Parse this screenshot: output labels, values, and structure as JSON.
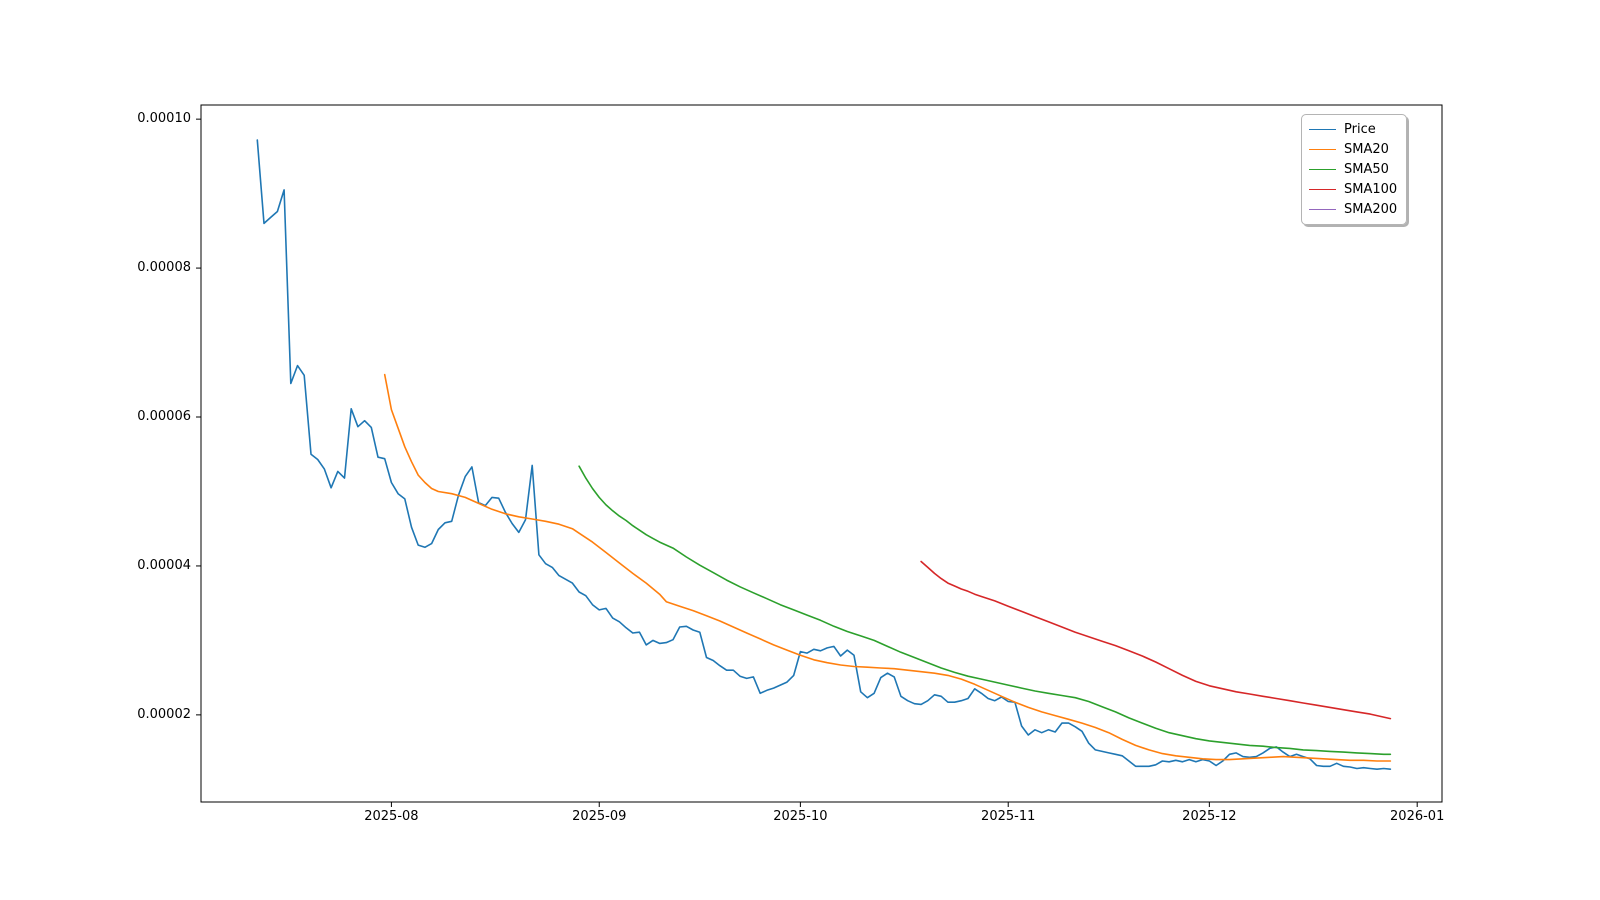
{
  "figure": {
    "background": "#ffffff",
    "plot_background": "#ffffff",
    "spine_color": "#000000"
  },
  "chart_data": {
    "type": "line",
    "title": "",
    "xlabel": "",
    "ylabel": "",
    "grid": false,
    "legend": {
      "location": "upper right",
      "shadow": true
    },
    "value_scale": 1e-05,
    "day_zero_date": "2025-07-12",
    "x_axis": {
      "tick_labels": [
        "2025-08",
        "2025-09",
        "2025-10",
        "2025-11",
        "2025-12",
        "2026-01"
      ],
      "tick_days": [
        20,
        51,
        81,
        112,
        142,
        173
      ],
      "xlim_days": [
        -8.4,
        176.7
      ]
    },
    "y_axis": {
      "tick_labels": [
        "0.00002",
        "0.00004",
        "0.00006",
        "0.00008",
        "0.00010"
      ],
      "tick_values": [
        2e-05,
        4e-05,
        6e-05,
        8e-05,
        0.0001
      ],
      "ylim": [
        8.3e-06,
        0.0001019
      ]
    },
    "series": [
      {
        "name": "Price",
        "color": "#1f77b4",
        "start_day": 0,
        "step_days": 1,
        "values": [
          9.72,
          8.6,
          8.68,
          8.76,
          9.05,
          6.45,
          6.69,
          6.56,
          5.5,
          5.43,
          5.3,
          5.05,
          5.27,
          5.18,
          6.11,
          5.87,
          5.95,
          5.86,
          5.46,
          5.44,
          5.12,
          4.97,
          4.9,
          4.52,
          4.28,
          4.25,
          4.3,
          4.49,
          4.58,
          4.6,
          4.95,
          5.2,
          5.33,
          4.85,
          4.81,
          4.92,
          4.91,
          4.72,
          4.57,
          4.45,
          4.62,
          5.35,
          4.15,
          4.03,
          3.98,
          3.87,
          3.82,
          3.77,
          3.65,
          3.6,
          3.48,
          3.41,
          3.43,
          3.3,
          3.25,
          3.17,
          3.1,
          3.11,
          2.94,
          3.0,
          2.96,
          2.97,
          3.01,
          3.18,
          3.19,
          3.14,
          3.11,
          2.77,
          2.73,
          2.66,
          2.6,
          2.6,
          2.52,
          2.49,
          2.51,
          2.29,
          2.33,
          2.36,
          2.4,
          2.44,
          2.53,
          2.85,
          2.83,
          2.88,
          2.86,
          2.9,
          2.92,
          2.79,
          2.87,
          2.8,
          2.31,
          2.23,
          2.29,
          2.5,
          2.56,
          2.51,
          2.25,
          2.19,
          2.15,
          2.14,
          2.19,
          2.27,
          2.25,
          2.17,
          2.17,
          2.19,
          2.22,
          2.35,
          2.29,
          2.22,
          2.19,
          2.24,
          2.18,
          2.17,
          1.85,
          1.73,
          1.8,
          1.76,
          1.8,
          1.77,
          1.89,
          1.89,
          1.84,
          1.78,
          1.62,
          1.53,
          1.51,
          1.49,
          1.47,
          1.45,
          1.38,
          1.31,
          1.31,
          1.31,
          1.33,
          1.38,
          1.37,
          1.39,
          1.37,
          1.4,
          1.37,
          1.4,
          1.38,
          1.32,
          1.38,
          1.47,
          1.49,
          1.44,
          1.43,
          1.44,
          1.49,
          1.55,
          1.57,
          1.5,
          1.44,
          1.47,
          1.44,
          1.41,
          1.32,
          1.31,
          1.31,
          1.35,
          1.31,
          1.3,
          1.28,
          1.29,
          1.28,
          1.27,
          1.28,
          1.27
        ]
      },
      {
        "name": "SMA20",
        "color": "#ff7f0e",
        "points": [
          [
            19,
            6.57
          ],
          [
            20,
            6.1
          ],
          [
            21,
            5.85
          ],
          [
            22,
            5.6
          ],
          [
            23,
            5.4
          ],
          [
            24,
            5.22
          ],
          [
            25,
            5.12
          ],
          [
            26,
            5.04
          ],
          [
            27,
            5.0
          ],
          [
            29,
            4.97
          ],
          [
            31,
            4.92
          ],
          [
            33,
            4.84
          ],
          [
            35,
            4.76
          ],
          [
            37,
            4.7
          ],
          [
            39,
            4.66
          ],
          [
            41,
            4.63
          ],
          [
            43,
            4.6
          ],
          [
            45,
            4.56
          ],
          [
            47,
            4.5
          ],
          [
            48,
            4.44
          ],
          [
            50,
            4.32
          ],
          [
            52,
            4.18
          ],
          [
            54,
            4.04
          ],
          [
            56,
            3.9
          ],
          [
            58,
            3.77
          ],
          [
            60,
            3.62
          ],
          [
            61,
            3.52
          ],
          [
            63,
            3.46
          ],
          [
            65,
            3.4
          ],
          [
            67,
            3.33
          ],
          [
            69,
            3.26
          ],
          [
            71,
            3.18
          ],
          [
            73,
            3.1
          ],
          [
            75,
            3.02
          ],
          [
            77,
            2.94
          ],
          [
            79,
            2.87
          ],
          [
            81,
            2.8
          ],
          [
            83,
            2.74
          ],
          [
            85,
            2.7
          ],
          [
            87,
            2.67
          ],
          [
            89,
            2.65
          ],
          [
            91,
            2.64
          ],
          [
            93,
            2.63
          ],
          [
            95,
            2.62
          ],
          [
            97,
            2.6
          ],
          [
            99,
            2.58
          ],
          [
            101,
            2.56
          ],
          [
            103,
            2.53
          ],
          [
            105,
            2.48
          ],
          [
            107,
            2.41
          ],
          [
            109,
            2.33
          ],
          [
            111,
            2.25
          ],
          [
            113,
            2.17
          ],
          [
            115,
            2.1
          ],
          [
            117,
            2.04
          ],
          [
            119,
            1.99
          ],
          [
            121,
            1.94
          ],
          [
            123,
            1.89
          ],
          [
            125,
            1.83
          ],
          [
            127,
            1.76
          ],
          [
            129,
            1.67
          ],
          [
            131,
            1.59
          ],
          [
            133,
            1.53
          ],
          [
            135,
            1.48
          ],
          [
            137,
            1.45
          ],
          [
            139,
            1.43
          ],
          [
            141,
            1.41
          ],
          [
            143,
            1.4
          ],
          [
            145,
            1.4
          ],
          [
            147,
            1.41
          ],
          [
            149,
            1.42
          ],
          [
            151,
            1.43
          ],
          [
            153,
            1.44
          ],
          [
            155,
            1.43
          ],
          [
            157,
            1.42
          ],
          [
            159,
            1.41
          ],
          [
            161,
            1.4
          ],
          [
            163,
            1.39
          ],
          [
            165,
            1.39
          ],
          [
            167,
            1.38
          ],
          [
            169,
            1.38
          ]
        ]
      },
      {
        "name": "SMA50",
        "color": "#2ca02c",
        "points": [
          [
            48,
            5.34
          ],
          [
            49,
            5.18
          ],
          [
            50,
            5.04
          ],
          [
            51,
            4.92
          ],
          [
            52,
            4.82
          ],
          [
            53,
            4.74
          ],
          [
            54,
            4.67
          ],
          [
            55,
            4.61
          ],
          [
            56,
            4.54
          ],
          [
            57,
            4.48
          ],
          [
            58,
            4.42
          ],
          [
            59,
            4.37
          ],
          [
            60,
            4.32
          ],
          [
            62,
            4.24
          ],
          [
            64,
            4.12
          ],
          [
            66,
            4.01
          ],
          [
            68,
            3.91
          ],
          [
            70,
            3.81
          ],
          [
            72,
            3.72
          ],
          [
            74,
            3.64
          ],
          [
            76,
            3.56
          ],
          [
            78,
            3.48
          ],
          [
            80,
            3.41
          ],
          [
            82,
            3.34
          ],
          [
            84,
            3.27
          ],
          [
            86,
            3.19
          ],
          [
            88,
            3.12
          ],
          [
            90,
            3.06
          ],
          [
            92,
            3.0
          ],
          [
            94,
            2.92
          ],
          [
            96,
            2.84
          ],
          [
            98,
            2.77
          ],
          [
            100,
            2.7
          ],
          [
            102,
            2.63
          ],
          [
            104,
            2.57
          ],
          [
            106,
            2.52
          ],
          [
            108,
            2.48
          ],
          [
            110,
            2.44
          ],
          [
            112,
            2.4
          ],
          [
            114,
            2.36
          ],
          [
            116,
            2.32
          ],
          [
            118,
            2.29
          ],
          [
            120,
            2.26
          ],
          [
            122,
            2.23
          ],
          [
            124,
            2.18
          ],
          [
            126,
            2.11
          ],
          [
            128,
            2.04
          ],
          [
            130,
            1.96
          ],
          [
            132,
            1.89
          ],
          [
            134,
            1.82
          ],
          [
            136,
            1.76
          ],
          [
            138,
            1.72
          ],
          [
            140,
            1.68
          ],
          [
            142,
            1.65
          ],
          [
            144,
            1.63
          ],
          [
            146,
            1.61
          ],
          [
            148,
            1.59
          ],
          [
            150,
            1.58
          ],
          [
            152,
            1.56
          ],
          [
            154,
            1.55
          ],
          [
            156,
            1.53
          ],
          [
            158,
            1.52
          ],
          [
            160,
            1.51
          ],
          [
            162,
            1.5
          ],
          [
            164,
            1.49
          ],
          [
            166,
            1.48
          ],
          [
            168,
            1.47
          ],
          [
            169,
            1.47
          ]
        ]
      },
      {
        "name": "SMA100",
        "color": "#d62728",
        "points": [
          [
            99,
            4.06
          ],
          [
            100,
            3.98
          ],
          [
            101,
            3.9
          ],
          [
            102,
            3.83
          ],
          [
            103,
            3.77
          ],
          [
            104,
            3.73
          ],
          [
            105,
            3.69
          ],
          [
            106,
            3.66
          ],
          [
            107,
            3.62
          ],
          [
            108,
            3.59
          ],
          [
            110,
            3.53
          ],
          [
            112,
            3.46
          ],
          [
            114,
            3.39
          ],
          [
            116,
            3.32
          ],
          [
            118,
            3.25
          ],
          [
            120,
            3.18
          ],
          [
            122,
            3.11
          ],
          [
            124,
            3.05
          ],
          [
            126,
            2.99
          ],
          [
            128,
            2.93
          ],
          [
            130,
            2.86
          ],
          [
            132,
            2.79
          ],
          [
            134,
            2.71
          ],
          [
            136,
            2.62
          ],
          [
            138,
            2.53
          ],
          [
            140,
            2.45
          ],
          [
            142,
            2.39
          ],
          [
            144,
            2.35
          ],
          [
            146,
            2.31
          ],
          [
            148,
            2.28
          ],
          [
            150,
            2.25
          ],
          [
            152,
            2.22
          ],
          [
            154,
            2.19
          ],
          [
            156,
            2.16
          ],
          [
            158,
            2.13
          ],
          [
            160,
            2.1
          ],
          [
            162,
            2.07
          ],
          [
            164,
            2.04
          ],
          [
            166,
            2.01
          ],
          [
            168,
            1.97
          ],
          [
            169,
            1.95
          ]
        ]
      },
      {
        "name": "SMA200",
        "color": "#9467bd",
        "points": []
      }
    ]
  }
}
